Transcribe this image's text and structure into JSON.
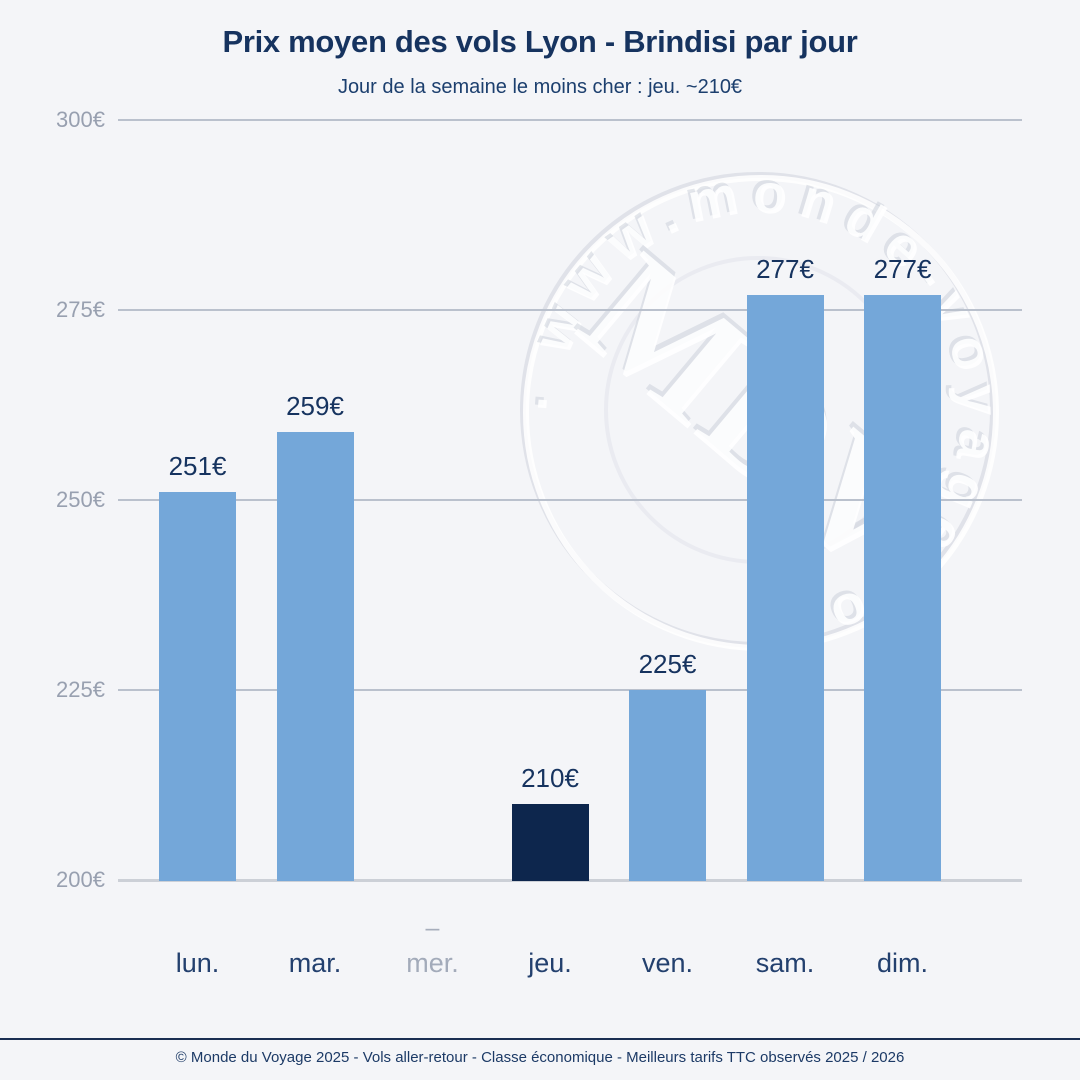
{
  "chart_data": {
    "type": "bar",
    "title": "Prix moyen des vols Lyon - Brindisi par jour",
    "subtitle": "Jour de la semaine le moins cher : jeu. ~210€",
    "categories": [
      "lun.",
      "mar.",
      "mer.",
      "jeu.",
      "ven.",
      "sam.",
      "dim."
    ],
    "values": [
      251,
      259,
      null,
      210,
      225,
      277,
      277
    ],
    "value_labels": [
      "251€",
      "259€",
      "–",
      "210€",
      "225€",
      "277€",
      "277€"
    ],
    "missing_value_marker": "–",
    "missing_index": 2,
    "highlight_index": 3,
    "xlabel": "",
    "ylabel": "",
    "ylim": [
      200,
      300
    ],
    "yticks": [
      {
        "label": "300€",
        "value": 300
      },
      {
        "label": "275€",
        "value": 275
      },
      {
        "label": "250€",
        "value": 250
      },
      {
        "label": "225€",
        "value": 225
      },
      {
        "label": "200€",
        "value": 200
      }
    ],
    "grid": true,
    "legend": false,
    "colors": {
      "bar": "#74a7d9",
      "highlight_bar": "#0d264d",
      "grid_line": "#bac1cd",
      "baseline": "#ccd0d7",
      "tick_text": "#98a0b0",
      "value_text": "#16335f",
      "xlabel_text": "#23406e",
      "xlabel_muted": "#a3abba",
      "title_text": "#16335f",
      "background": "#f4f5f8"
    }
  },
  "watermark": {
    "ring_text": "· www.monde-voyage.com",
    "center_text": "MDV"
  },
  "footer": {
    "text": "© Monde du Voyage 2025 - Vols aller-retour - Classe économique - Meilleurs tarifs TTC observés 2025 / 2026"
  }
}
